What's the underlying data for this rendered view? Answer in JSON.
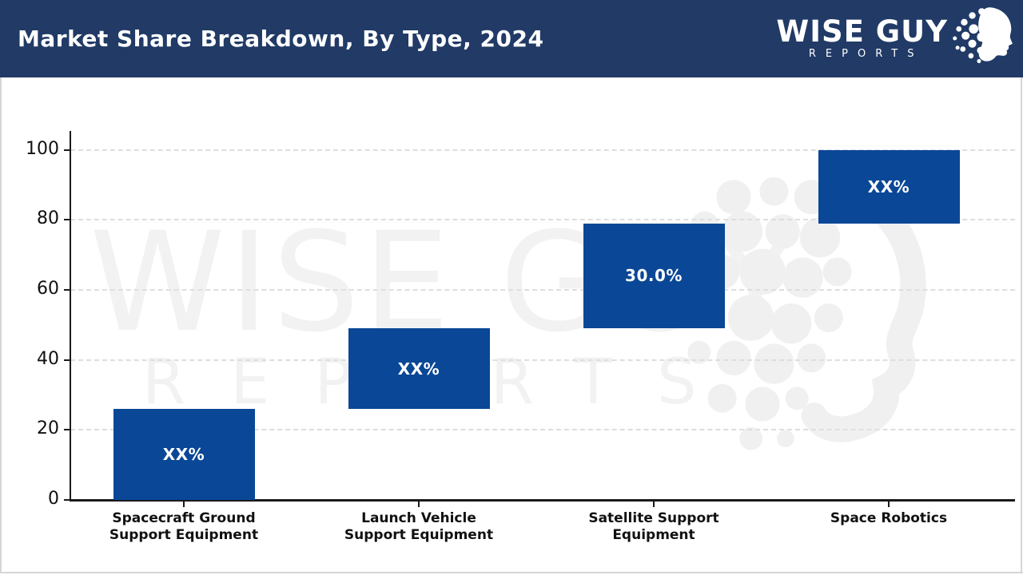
{
  "header": {
    "title": "Market Share Breakdown, By Type, 2024",
    "logo": {
      "line1": "WISE GUY",
      "line2": "REPORTS"
    }
  },
  "watermark": {
    "line1": "WISE GUY",
    "line2": "REPORTS"
  },
  "chart_data": {
    "type": "bar",
    "subtype": "floating-waterfall",
    "title": "Market Share Breakdown, By Type, 2024",
    "categories": [
      "Spacecraft Ground\nSupport Equipment",
      "Launch Vehicle\nSupport Equipment",
      "Satellite Support\nEquipment",
      "Space Robotics"
    ],
    "bars": [
      {
        "category": "Spacecraft Ground Support Equipment",
        "start": 0,
        "end": 26,
        "value": 26,
        "label": "XX%"
      },
      {
        "category": "Launch Vehicle Support Equipment",
        "start": 26,
        "end": 49,
        "value": 23,
        "label": "XX%"
      },
      {
        "category": "Satellite Support Equipment",
        "start": 49,
        "end": 79,
        "value": 30,
        "label": "30.0%"
      },
      {
        "category": "Space Robotics",
        "start": 79,
        "end": 100,
        "value": 21,
        "label": "XX%"
      }
    ],
    "yticks": [
      0,
      20,
      40,
      60,
      80,
      100
    ],
    "ylim": [
      0,
      105
    ],
    "xlabel": "",
    "ylabel": "",
    "grid": "dashed-horizontal",
    "legend": "none",
    "bar_color": "#0a4796",
    "header_bg_color": "#213a66",
    "gridline_color": "#dedede"
  }
}
